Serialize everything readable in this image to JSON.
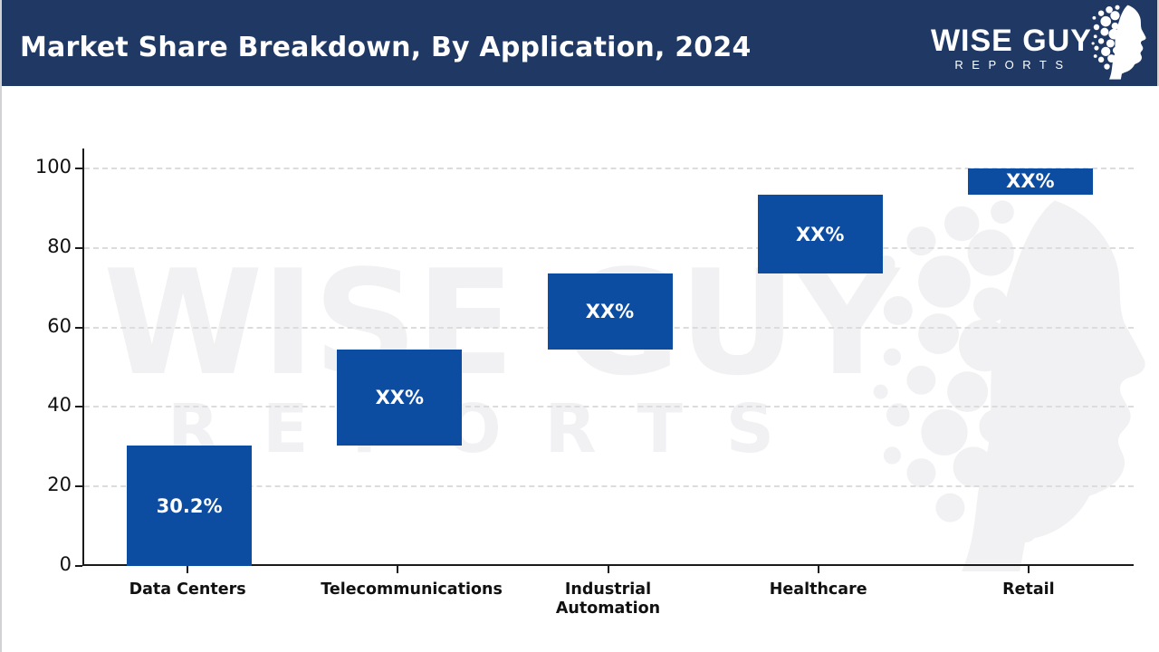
{
  "header": {
    "title": "Market Share Breakdown, By Application, 2024",
    "logo": {
      "line1": "WISE GUY",
      "line2": "REPORTS"
    }
  },
  "watermark": {
    "line1": "WISE GUY",
    "line2": "REPORTS"
  },
  "colors": {
    "header_background": "#1f3864",
    "bar": "#0c4da2",
    "bar_label": "#ffffff",
    "axis": "#1a1a1a",
    "gridline": "#dcdcdc",
    "watermark": "#f1f1f3"
  },
  "chart_data": {
    "type": "bar",
    "subtype": "waterfall",
    "title": "Market Share Breakdown, By Application, 2024",
    "categories": [
      "Data Centers",
      "Telecommunications",
      "Industrial Automation",
      "Healthcare",
      "Retail"
    ],
    "segments": [
      {
        "category": "Data Centers",
        "start": 0,
        "end": 30.2,
        "label": "30.2%"
      },
      {
        "category": "Telecommunications",
        "start": 30.2,
        "end": 54.5,
        "label": "XX%"
      },
      {
        "category": "Industrial Automation",
        "start": 54.5,
        "end": 73.5,
        "label": "XX%"
      },
      {
        "category": "Healthcare",
        "start": 73.5,
        "end": 93.4,
        "label": "XX%"
      },
      {
        "category": "Retail",
        "start": 93.4,
        "end": 100,
        "label": "XX%"
      }
    ],
    "yticks": [
      0,
      20,
      40,
      60,
      80,
      100
    ],
    "ylim": [
      0,
      105
    ],
    "xlabel": "",
    "ylabel": "",
    "grid": "horizontal-dashed",
    "legend": "none"
  }
}
